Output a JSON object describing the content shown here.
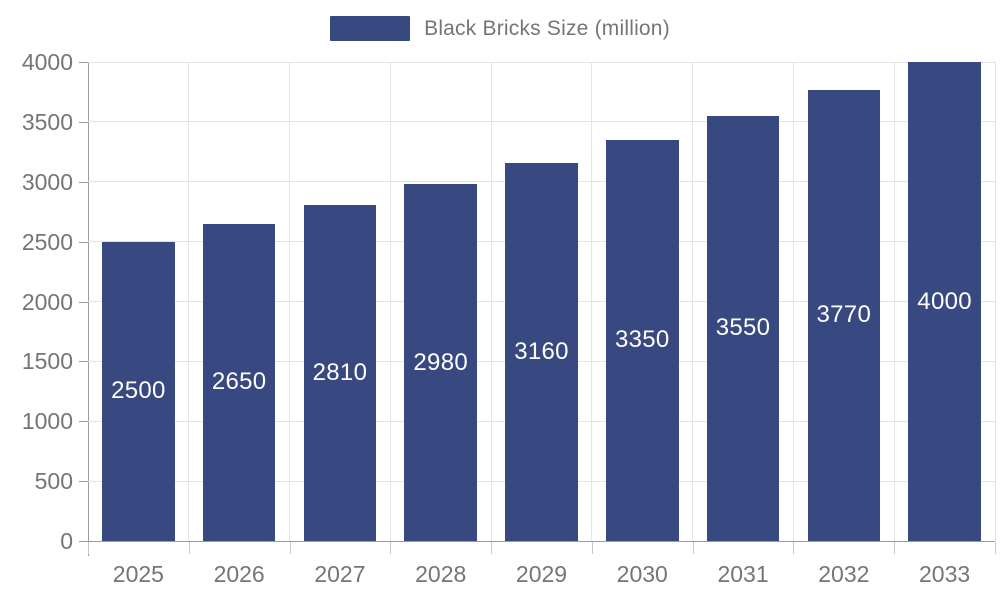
{
  "chart_data": {
    "type": "bar",
    "title": "Black Bricks Size (million)",
    "legend": {
      "label": "Black Bricks Size (million)",
      "position": "top-center"
    },
    "categories": [
      "2025",
      "2026",
      "2027",
      "2028",
      "2029",
      "2030",
      "2031",
      "2032",
      "2033"
    ],
    "series": [
      {
        "name": "Black Bricks Size (million)",
        "values": [
          2500,
          2650,
          2810,
          2980,
          3160,
          3350,
          3550,
          3770,
          4000
        ]
      }
    ],
    "data_labels_shown": true,
    "xlabel": "",
    "ylabel": "",
    "ylim": [
      0,
      4000
    ],
    "y_ticks": [
      0,
      500,
      1000,
      1500,
      2000,
      2500,
      3000,
      3500,
      4000
    ],
    "grid": true,
    "colors": {
      "bar": "#384880",
      "bar_label": "#ffffff",
      "axis_label": "#757575",
      "legend_text": "#757575",
      "grid_line": "#e4e4e4",
      "axis_line": "#9b9b9b",
      "background": "#ffffff"
    }
  }
}
